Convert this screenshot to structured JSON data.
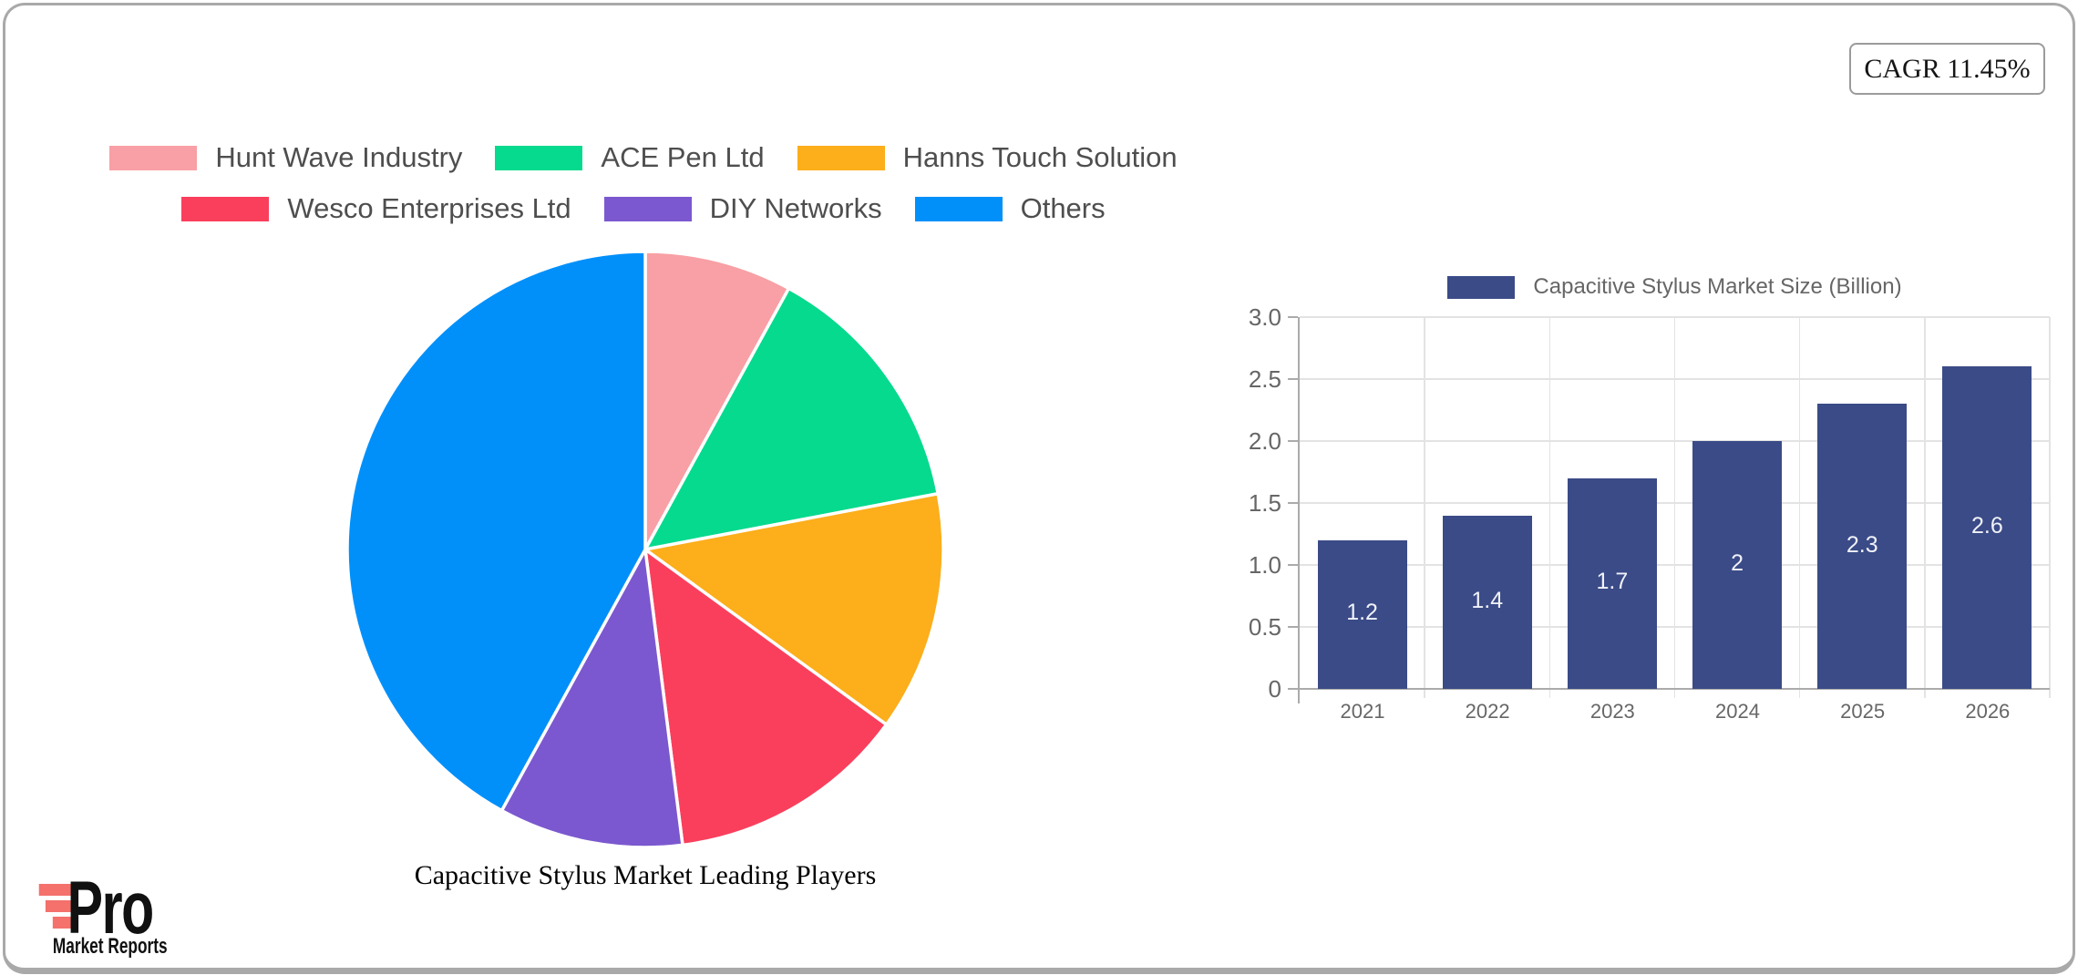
{
  "badge": {
    "label": "CAGR 11.45%"
  },
  "logo": {
    "name": "Pro",
    "tagline": "Market Reports",
    "bar_color": "#F4716C"
  },
  "colors": {
    "card_border": "#A9A9A9",
    "grid_line": "#E3E3E3",
    "axis_line": "#ABABAB",
    "tick_text": "#666666",
    "legend_text": "#4E4E4E"
  },
  "chart_data": [
    {
      "type": "pie",
      "title": "Capacitive Stylus Market Leading Players",
      "legend_position": "top",
      "direction": "clockwise",
      "start_angle_deg": 0,
      "labels": [
        "Hunt Wave Industry",
        "ACE Pen Ltd",
        "Hanns Touch Solution",
        "Wesco Enterprises Ltd",
        "DIY Networks",
        "Others"
      ],
      "values": [
        8,
        14,
        13,
        13,
        10,
        42
      ],
      "value_format": "percent_of_total_estimated_from_angles",
      "colors": [
        "#F8A0A5",
        "#06DA8E",
        "#FCAE1B",
        "#FA3F5D",
        "#7B58CF",
        "#0190FA"
      ]
    },
    {
      "type": "bar",
      "legend": "Capacitive Stylus Market Size (Billion)",
      "legend_position": "top",
      "categories": [
        "2021",
        "2022",
        "2023",
        "2024",
        "2025",
        "2026"
      ],
      "values": [
        1.2,
        1.4,
        1.7,
        2,
        2.3,
        2.6
      ],
      "bar_labels": [
        "1.2",
        "1.4",
        "1.7",
        "2",
        "2.3",
        "2.6"
      ],
      "ylim": [
        0,
        3
      ],
      "y_tick_labels": [
        "3.0",
        "2.5",
        "2.0",
        "1.5",
        "1.0",
        "0.5",
        "0"
      ],
      "grid": true,
      "bar_color": "#3B4B87"
    }
  ]
}
